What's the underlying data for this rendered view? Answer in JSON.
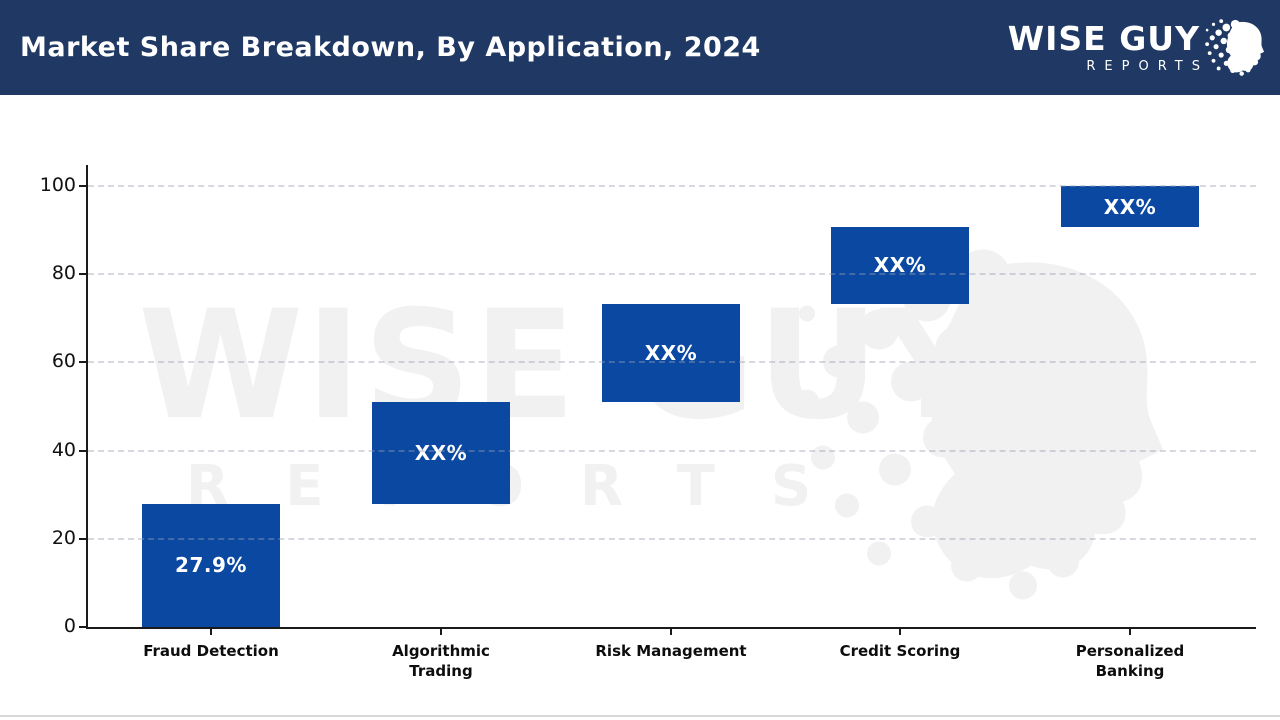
{
  "header": {
    "title": "Market Share Breakdown, By Application, 2024",
    "logo": {
      "name": "WISE GUY",
      "subtitle": "REPORTS"
    }
  },
  "watermark": {
    "line1": "WISE GUY",
    "line2": "REPORTS"
  },
  "chart_data": {
    "type": "bar",
    "subtype": "floating-waterfall",
    "title": "Market Share Breakdown, By Application, 2024",
    "categories": [
      "Fraud Detection",
      "Algorithmic Trading",
      "Risk Management",
      "Credit Scoring",
      "Personalized Banking"
    ],
    "category_label_lines": [
      [
        "Fraud Detection"
      ],
      [
        "Algorithmic",
        "Trading"
      ],
      [
        "Risk Management"
      ],
      [
        "Credit Scoring"
      ],
      [
        "Personalized",
        "Banking"
      ]
    ],
    "bars": [
      {
        "category": "Fraud Detection",
        "base": 0,
        "top": 27.9,
        "label": "27.9%"
      },
      {
        "category": "Algorithmic Trading",
        "base": 27.9,
        "top": 51.0,
        "label": "XX%"
      },
      {
        "category": "Risk Management",
        "base": 51.0,
        "top": 73.3,
        "label": "XX%"
      },
      {
        "category": "Credit Scoring",
        "base": 73.3,
        "top": 90.7,
        "label": "XX%"
      },
      {
        "category": "Personalized Banking",
        "base": 90.7,
        "top": 100,
        "label": "XX%"
      }
    ],
    "y_ticks": [
      0,
      20,
      40,
      60,
      80,
      100
    ],
    "ylim": [
      0,
      105
    ],
    "xlabel": "",
    "ylabel": "",
    "grid": "dashed-horizontal",
    "legend": "none",
    "bar_color": "#0a48a2",
    "bar_label_color": "#ffffff"
  },
  "colors": {
    "header_bg": "#1f3864",
    "axis": "#1a1a1a",
    "watermark": "#f1f1f1",
    "bar": "#0a48a2"
  }
}
